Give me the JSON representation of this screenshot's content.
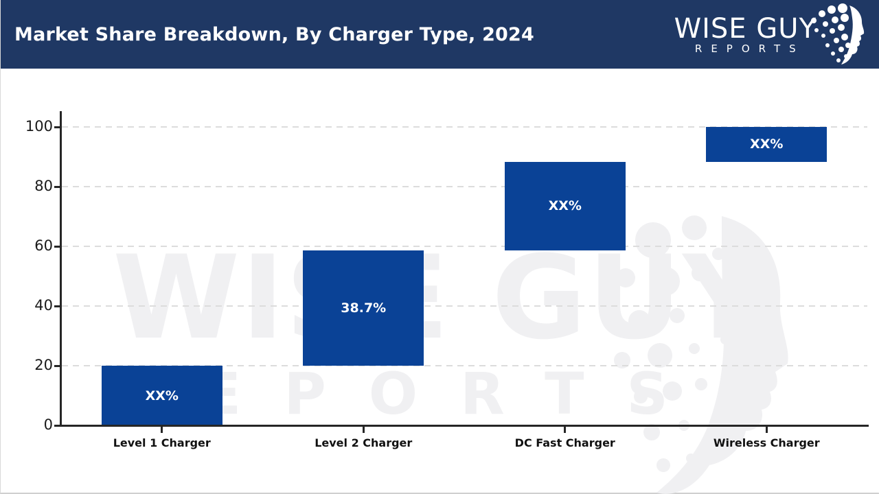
{
  "header": {
    "title": "Market Share Breakdown, By Charger Type, 2024",
    "bg_color": "#1f3864",
    "logo": {
      "line1": "WISE GUY",
      "line2": "REPORTS"
    }
  },
  "watermark": {
    "line1": "WISE GUY",
    "line2": "REPORTS"
  },
  "chart_data": {
    "type": "bar",
    "subtype": "waterfall",
    "title": "Market Share Breakdown, By Charger Type, 2024",
    "categories": [
      "Level 1 Charger",
      "Level 2 Charger",
      "DC Fast Charger",
      "Wireless Charger"
    ],
    "segments": [
      {
        "category": "Level 1 Charger",
        "start": 0,
        "end": 20,
        "value": 20,
        "label": "XX%"
      },
      {
        "category": "Level 2 Charger",
        "start": 20,
        "end": 58.7,
        "value": 38.7,
        "label": "38.7%"
      },
      {
        "category": "DC Fast Charger",
        "start": 58.7,
        "end": 88.3,
        "value": 29.6,
        "label": "XX%"
      },
      {
        "category": "Wireless Charger",
        "start": 88.3,
        "end": 100,
        "value": 11.7,
        "label": "XX%"
      }
    ],
    "yticks": [
      0,
      20,
      40,
      60,
      80,
      100
    ],
    "ylim": [
      0,
      105
    ],
    "grid": "horizontal-dashed",
    "legend": "none",
    "bar_color": "#0a4296",
    "bar_label_color": "#ffffff",
    "axis_color": "#262626",
    "grid_color": "#dcdcdc"
  }
}
